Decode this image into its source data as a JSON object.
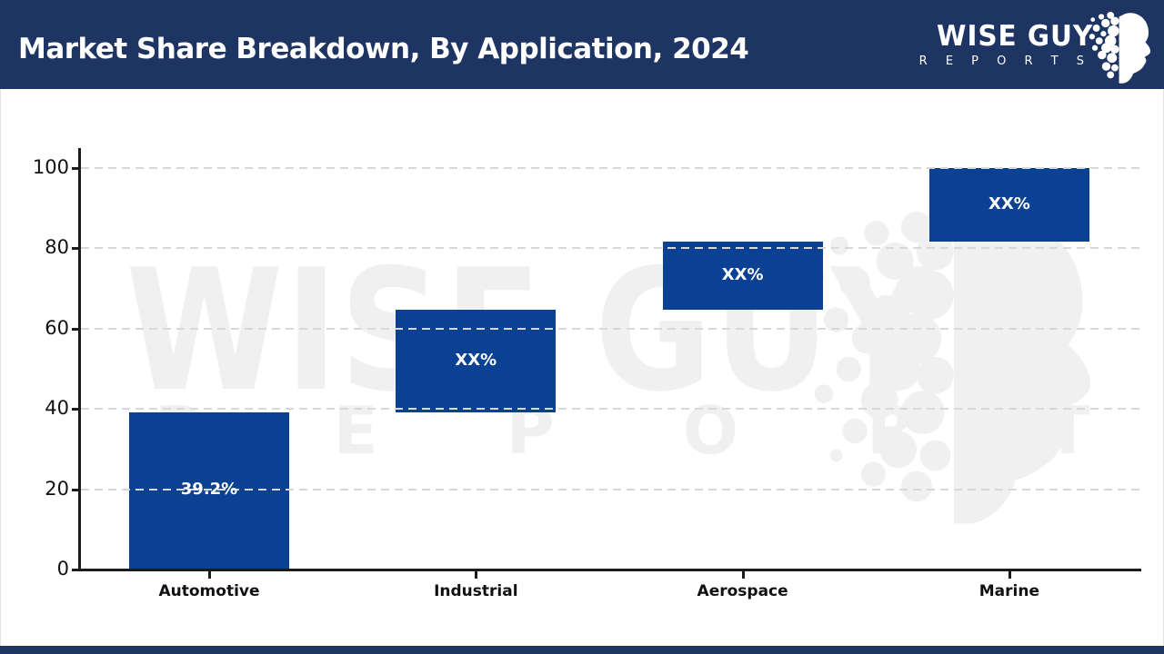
{
  "header": {
    "title": "Market Share Breakdown, By Application, 2024",
    "brand": {
      "line1": "WISE GUY",
      "line2": "R E P O R T S"
    }
  },
  "watermark": {
    "line1": "WISE GUY",
    "line2": "R E P O R T S"
  },
  "colors": {
    "header_bg": "#1e3563",
    "bar": "#0a4193",
    "bar_label": "#ffffff",
    "gridline": "#d8d8d8",
    "axis": "#1c1c1c",
    "watermark": "#f0f0f0"
  },
  "chart_data": {
    "type": "bar",
    "subtype": "waterfall",
    "title": "Market Share Breakdown, By Application, 2024",
    "categories": [
      "Automotive",
      "Industrial",
      "Aerospace",
      "Marine"
    ],
    "bars": [
      {
        "category": "Automotive",
        "start": 0,
        "end": 39.2,
        "label": "39.2%"
      },
      {
        "category": "Industrial",
        "start": 39.2,
        "end": 64.6,
        "label": "XX%"
      },
      {
        "category": "Aerospace",
        "start": 64.6,
        "end": 81.6,
        "label": "XX%"
      },
      {
        "category": "Marine",
        "start": 81.6,
        "end": 100,
        "label": "XX%"
      }
    ],
    "ylim": [
      0,
      100
    ],
    "yticks": [
      0,
      20,
      40,
      60,
      80,
      100
    ],
    "xlabel": "",
    "ylabel": "",
    "grid": "horizontal-dashed",
    "legend": "none"
  }
}
